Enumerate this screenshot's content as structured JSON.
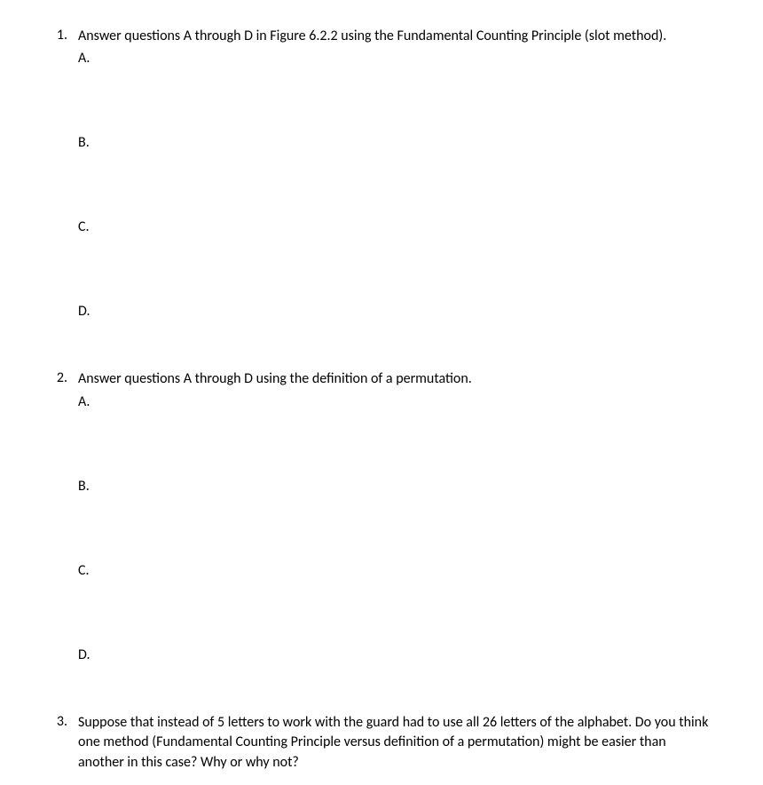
{
  "questions": {
    "q1": {
      "number": "1.",
      "text": "Answer questions A through D in Figure 6.2.2 using the Fundamental Counting Principle (slot method).",
      "parts": {
        "a": "A.",
        "b": "B.",
        "c": "C.",
        "d": "D."
      }
    },
    "q2": {
      "number": "2.",
      "text": "Answer questions A through D using the definition of a permutation.",
      "parts": {
        "a": "A.",
        "b": "B.",
        "c": "C.",
        "d": "D."
      }
    },
    "q3": {
      "number": "3.",
      "text": "Suppose that instead of 5 letters to work with the guard had to use all 26 letters of the alphabet. Do you think one method (Fundamental Counting Principle versus definition of a permutation) might be easier than another in this case? Why or why not?"
    }
  }
}
